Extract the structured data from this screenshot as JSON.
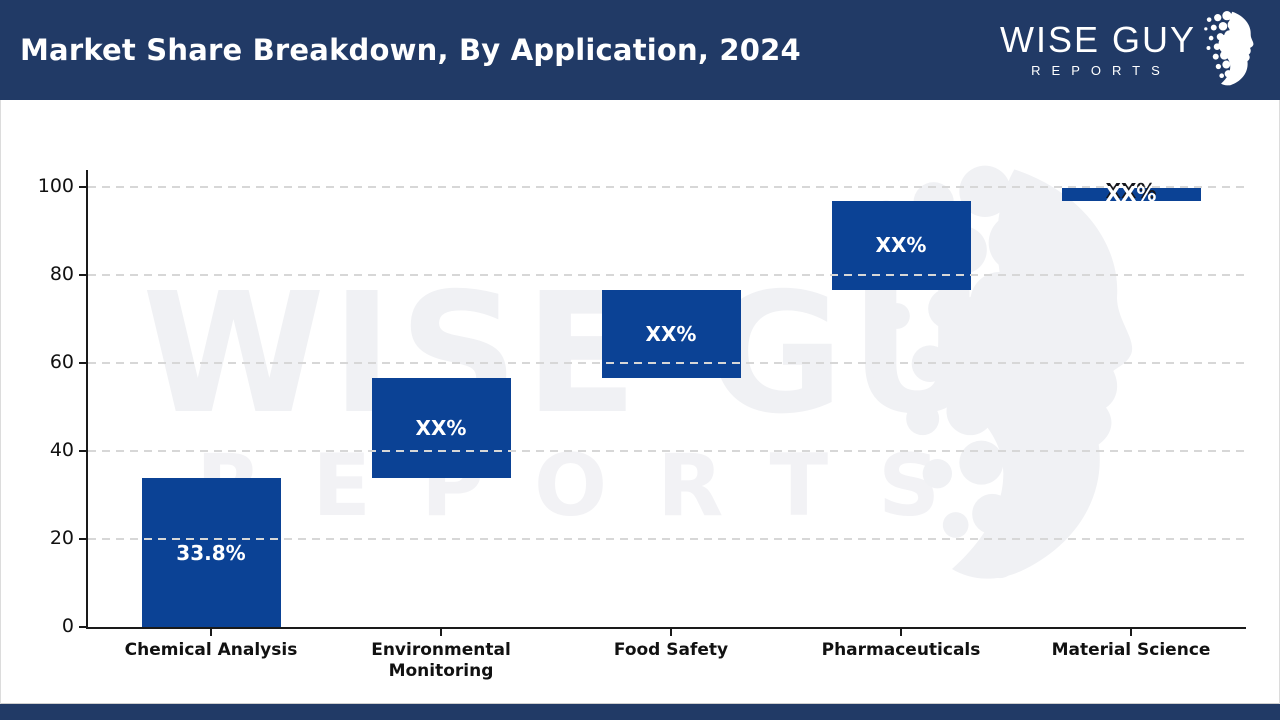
{
  "header": {
    "title": "Market Share Breakdown, By Application, 2024",
    "brand": {
      "top": "WISE GUY",
      "bottom": "REPORTS"
    }
  },
  "watermark": {
    "line1": "WISE GUY",
    "line2": "REPORTS"
  },
  "chart_data": {
    "type": "bar",
    "subtype": "waterfall",
    "title": "Market Share Breakdown, By Application, 2024",
    "categories": [
      "Chemical Analysis",
      "Environmental\nMonitoring",
      "Food Safety",
      "Pharmaceuticals",
      "Material Science"
    ],
    "bars": [
      {
        "category": "Chemical Analysis",
        "start": 0,
        "end": 33.8,
        "label": "33.8%"
      },
      {
        "category": "Environmental Monitoring",
        "start": 33.8,
        "end": 56.6,
        "label": "XX%"
      },
      {
        "category": "Food Safety",
        "start": 56.6,
        "end": 76.7,
        "label": "XX%"
      },
      {
        "category": "Pharmaceuticals",
        "start": 76.7,
        "end": 96.8,
        "label": "XX%"
      },
      {
        "category": "Material Science",
        "start": 96.8,
        "end": 99.8,
        "label": "XX%"
      }
    ],
    "ylim": [
      0,
      105
    ],
    "yticks": [
      0,
      20,
      40,
      60,
      80,
      100
    ],
    "xlabel": "",
    "ylabel": "",
    "grid": "horizontal-dashed",
    "legend": "none",
    "bar_color": "#0b4295",
    "bar_label_color": "#ffffff"
  },
  "colors": {
    "header_bg": "#213a66",
    "footer_bg": "#213a66",
    "axis": "#1a1a1a",
    "grid": "#d7d7d7",
    "watermark": "#f0f1f4"
  }
}
